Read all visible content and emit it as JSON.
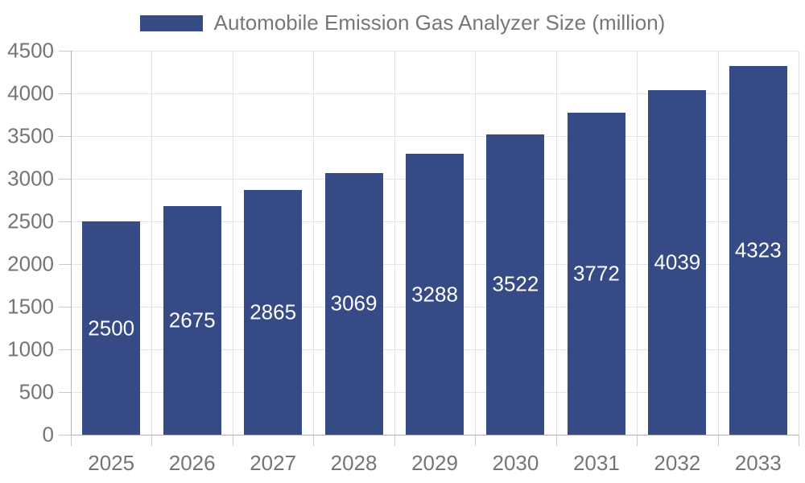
{
  "chart_data": {
    "type": "bar",
    "title": "",
    "legend": "Automobile Emission Gas Analyzer Size (million)",
    "legend_position": "top-center",
    "categories": [
      "2025",
      "2026",
      "2027",
      "2028",
      "2029",
      "2030",
      "2031",
      "2032",
      "2033"
    ],
    "series": [
      {
        "name": "Automobile Emission Gas Analyzer Size (million)",
        "values": [
          2500,
          2675,
          2865,
          3069,
          3288,
          3522,
          3772,
          4039,
          4323
        ]
      }
    ],
    "bar_value_labels": [
      "2500",
      "2675",
      "2865",
      "3069",
      "3288",
      "3522",
      "3772",
      "4039",
      "4323"
    ],
    "xlabel": "",
    "ylabel": "",
    "ylim": [
      0,
      4500
    ],
    "ytick_step": 500,
    "ytick_labels": [
      "0",
      "500",
      "1000",
      "1500",
      "2000",
      "2500",
      "3000",
      "3500",
      "4000",
      "4500"
    ],
    "grid": true,
    "colors": {
      "bar": "#364A86",
      "bar_label": "#ffffff",
      "axis_text": "#757575",
      "legend_text": "#777777",
      "gridline": "#e3e3e3",
      "axis_line": "#b3b3b3",
      "tick": "#c9c9c9",
      "background": "#ffffff"
    }
  }
}
